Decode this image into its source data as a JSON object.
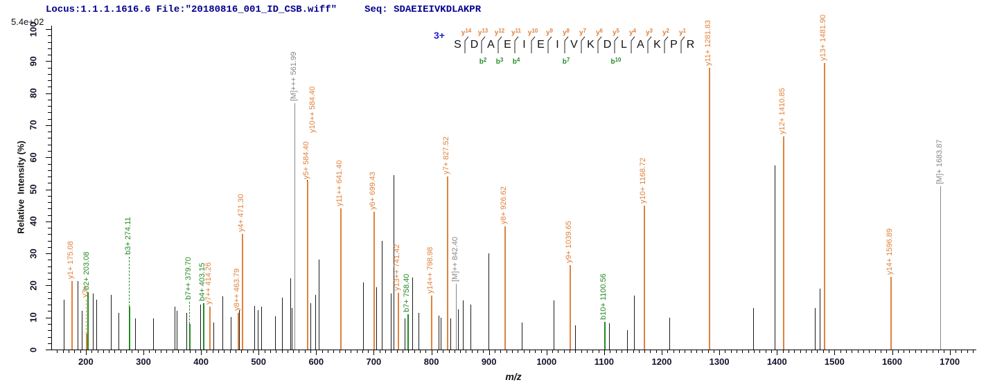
{
  "header": {
    "locus_file": "Locus:1.1.1.1616.6 File:\"20180816_001_ID_CSB.wiff\"",
    "seq_label": "Seq:",
    "sequence": "SDAEIEIVKDLAKPR",
    "max_intensity": "5.4e+02"
  },
  "axes": {
    "x": {
      "title": "m/z",
      "min": 140,
      "max": 1745,
      "major_tick": 100,
      "minor_tick": 10,
      "first_label": 200,
      "last_label": 1700
    },
    "y": {
      "title": "Relative  Intensity (%)",
      "min": 0,
      "max": 100,
      "major_tick": 10,
      "minor_tick": 2
    }
  },
  "annotation": {
    "charge": "3+",
    "residues": [
      "S",
      "D",
      "A",
      "E",
      "I",
      "E",
      "I",
      "V",
      "K",
      "D",
      "L",
      "A",
      "K",
      "P",
      "R"
    ],
    "y_ions": [
      14,
      13,
      12,
      11,
      10,
      9,
      8,
      7,
      6,
      5,
      4,
      3,
      2,
      1
    ],
    "b_ions": [
      {
        "n": 2,
        "after": 2
      },
      {
        "n": 3,
        "after": 3
      },
      {
        "n": 4,
        "after": 4
      },
      {
        "n": 7,
        "after": 7
      },
      {
        "n": 10,
        "after": 10
      }
    ]
  },
  "colors": {
    "y_series": "#E0823C",
    "b_series": "#228B22",
    "M_series": "#868686",
    "peak_black": "#1a1a1a",
    "header_blue": "#00008B",
    "charge_blue": "#2222CC"
  },
  "chart_data": {
    "type": "ms2-spectrum",
    "title": "",
    "xlabel": "m/z",
    "ylabel": "Relative  Intensity (%)",
    "xlim": [
      140,
      1745
    ],
    "ylim": [
      0,
      100
    ],
    "labeled_peaks": [
      {
        "label": "y1+ 175.08",
        "mz": 175.08,
        "series": "y",
        "peak": 21,
        "base": 21.5
      },
      {
        "label": "y3+",
        "mz": 200.2,
        "series": "y",
        "peak": 5,
        "base": 15.5,
        "dashed": true
      },
      {
        "label": "b2+ 203.08",
        "mz": 203.08,
        "series": "b",
        "peak": 17,
        "base": 18
      },
      {
        "label": "b3+ 274.11",
        "mz": 274.11,
        "series": "b",
        "peak": 13.4,
        "base": 29,
        "dashed": true
      },
      {
        "label": "b7++ 379.70",
        "mz": 379.7,
        "series": "b",
        "peak": 8,
        "base": 15,
        "dashed": true
      },
      {
        "label": "b4+ 403.15",
        "mz": 403.15,
        "series": "b",
        "peak": 14.5,
        "base": 14.5
      },
      {
        "label": "y7++ 414.26",
        "mz": 414.26,
        "series": "y",
        "peak": 13.4,
        "base": 13.4
      },
      {
        "label": "y8++ 463.79",
        "mz": 463.79,
        "series": "y",
        "peak": 11.4,
        "base": 11.4
      },
      {
        "label": "y4+ 471.30",
        "mz": 471.3,
        "series": "y",
        "peak": 36,
        "base": 36
      },
      {
        "label": "[M]+++ 561.99",
        "mz": 561.99,
        "series": "M",
        "peak": 77,
        "base": 77
      },
      {
        "label": "y5+ 584.40",
        "mz": 584.4,
        "series": "y",
        "peak": 52.5,
        "base": 52.5
      },
      {
        "label": "y10++ 584.40",
        "mz": 584.4,
        "series": "y",
        "peak": 0,
        "base": 67,
        "label_only": true,
        "dx": 9
      },
      {
        "label": "y11++ 641.40",
        "mz": 641.4,
        "series": "y",
        "peak": 44,
        "base": 44
      },
      {
        "label": "y6+ 699.43",
        "mz": 699.43,
        "series": "y",
        "peak": 43,
        "base": 43
      },
      {
        "label": "y13++ 741.42",
        "mz": 741.42,
        "series": "y",
        "peak": 17.7,
        "base": 17.7
      },
      {
        "label": "b7+ 758.40",
        "mz": 758.4,
        "series": "b",
        "peak": 11,
        "base": 11
      },
      {
        "label": "y14++ 798.98",
        "mz": 798.98,
        "series": "y",
        "peak": 16.8,
        "base": 16.8
      },
      {
        "label": "y7+ 827.52",
        "mz": 827.52,
        "series": "y",
        "peak": 54,
        "base": 54
      },
      {
        "label": "[M]++ 842.40",
        "mz": 842.4,
        "series": "M",
        "peak": 20.5,
        "base": 20.5
      },
      {
        "label": "y8+ 926.62",
        "mz": 926.62,
        "series": "y",
        "peak": 38.5,
        "base": 38.5
      },
      {
        "label": "y9+ 1039.65",
        "mz": 1039.65,
        "series": "y",
        "peak": 26.3,
        "base": 26.3
      },
      {
        "label": "b10+ 1100.56",
        "mz": 1100.56,
        "series": "b",
        "peak": 8.3,
        "base": 8.6
      },
      {
        "label": "y10+ 1168.72",
        "mz": 1168.72,
        "series": "y",
        "peak": 45,
        "base": 45
      },
      {
        "label": "y11+ 1281.83",
        "mz": 1281.83,
        "series": "y",
        "peak": 88,
        "base": 88
      },
      {
        "label": "y12+ 1410.85",
        "mz": 1410.85,
        "series": "y",
        "peak": 66.5,
        "base": 66.5
      },
      {
        "label": "y13+ 1481.90",
        "mz": 1481.9,
        "series": "y",
        "peak": 89.5,
        "base": 89.5
      },
      {
        "label": "y14+ 1596.89",
        "mz": 1596.89,
        "series": "y",
        "peak": 22.7,
        "base": 22.7
      },
      {
        "label": "[M]+ 1683.87",
        "mz": 1683.87,
        "series": "M",
        "peak": 51,
        "base": 51
      }
    ],
    "unlabeled_peaks": [
      [
        161,
        15.5
      ],
      [
        186,
        21.5
      ],
      [
        193,
        12
      ],
      [
        212,
        17.5
      ],
      [
        218,
        15.5
      ],
      [
        244,
        17
      ],
      [
        257,
        11.5
      ],
      [
        285,
        9.7
      ],
      [
        317,
        9.7
      ],
      [
        354,
        13.5
      ],
      [
        358,
        12
      ],
      [
        375,
        11.4
      ],
      [
        399,
        14
      ],
      [
        421,
        8.5
      ],
      [
        437,
        16.6
      ],
      [
        451,
        10.2
      ],
      [
        466,
        12.3
      ],
      [
        493,
        13.6
      ],
      [
        499,
        12.3
      ],
      [
        504,
        13.4
      ],
      [
        528,
        10.4
      ],
      [
        541,
        16.2
      ],
      [
        555,
        22.3
      ],
      [
        558,
        13
      ],
      [
        583.5,
        53
      ],
      [
        590,
        14.5
      ],
      [
        598,
        17
      ],
      [
        604,
        28
      ],
      [
        681,
        21
      ],
      [
        704,
        19.5
      ],
      [
        714,
        34
      ],
      [
        730,
        17.5
      ],
      [
        734,
        54.5
      ],
      [
        753,
        9.7
      ],
      [
        767,
        22.5
      ],
      [
        778,
        11.4
      ],
      [
        812,
        10.5
      ],
      [
        816,
        10
      ],
      [
        833,
        9.7
      ],
      [
        846,
        12.5
      ],
      [
        855,
        15.3
      ],
      [
        868,
        14
      ],
      [
        899,
        30
      ],
      [
        957,
        8.5
      ],
      [
        1012,
        15.3
      ],
      [
        1049,
        7.5
      ],
      [
        1108,
        8.2
      ],
      [
        1140,
        6
      ],
      [
        1152,
        16.8
      ],
      [
        1213,
        10
      ],
      [
        1359,
        13
      ],
      [
        1396,
        57.5
      ],
      [
        1466,
        13
      ],
      [
        1474,
        19
      ]
    ]
  }
}
